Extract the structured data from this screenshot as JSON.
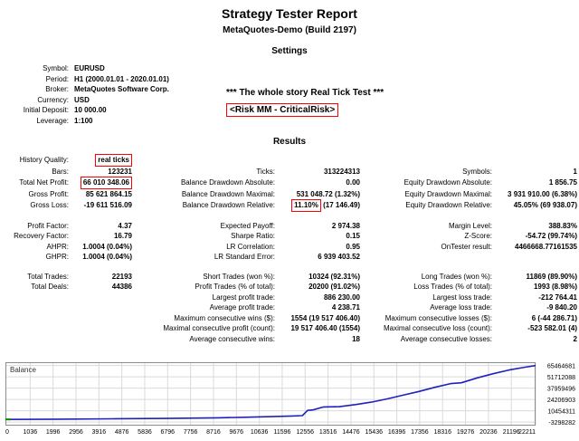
{
  "colors": {
    "annotation_red": "#ff0000"
  },
  "header": {
    "title": "Strategy Tester Report",
    "subtitle": "MetaQuotes-Demo (Build 2197)",
    "settings_heading": "Settings",
    "results_heading": "Results"
  },
  "settings": {
    "rows": [
      {
        "label": "Symbol:",
        "value": "EURUSD"
      },
      {
        "label": "Period:",
        "value": "H1 (2000.01.01 - 2020.01.01)"
      },
      {
        "label": "Broker:",
        "value": "MetaQuotes Software Corp."
      },
      {
        "label": "Currency:",
        "value": "USD"
      },
      {
        "label": "Initial Deposit:",
        "value": "10 000.00"
      },
      {
        "label": "Leverage:",
        "value": "1:100"
      }
    ],
    "annotation_line1": "*** The whole story Real Tick Test ***",
    "annotation_line2": "<Risk MM - CriticalRisk>"
  },
  "results": {
    "rows": [
      [
        "History Quality:",
        {
          "boxed": "real ticks"
        },
        "",
        "",
        "",
        ""
      ],
      [
        "Bars:",
        "123231",
        "Ticks:",
        "313224313",
        "Symbols:",
        "1"
      ],
      [
        "Total Net Profit:",
        {
          "boxed": "66 010 348.06"
        },
        "Balance Drawdown Absolute:",
        "0.00",
        "Equity Drawdown Absolute:",
        "1 856.75"
      ],
      [
        "Gross Profit:",
        "85 621 864.15",
        "Balance Drawdown Maximal:",
        "531 048.72 (1.32%)",
        "Equity Drawdown Maximal:",
        "3 931 910.00 (6.38%)"
      ],
      [
        "Gross Loss:",
        "-19 611 516.09",
        "Balance Drawdown Relative:",
        {
          "boxed": "11.10%",
          "rest": " (17 146.49)"
        },
        "Equity Drawdown Relative:",
        "45.05% (69 938.07)"
      ],
      [],
      [
        "Profit Factor:",
        "4.37",
        "Expected Payoff:",
        "2 974.38",
        "Margin Level:",
        "388.83%"
      ],
      [
        "Recovery Factor:",
        "16.79",
        "Sharpe Ratio:",
        "0.15",
        "Z-Score:",
        "-54.72 (99.74%)"
      ],
      [
        "AHPR:",
        "1.0004 (0.04%)",
        "LR Correlation:",
        "0.95",
        "OnTester result:",
        "4466668.77161535"
      ],
      [
        "GHPR:",
        "1.0004 (0.04%)",
        "LR Standard Error:",
        "6 939 403.52",
        "",
        ""
      ],
      [],
      [
        "Total Trades:",
        "22193",
        "Short Trades (won %):",
        "10324 (92.31%)",
        "Long Trades (won %):",
        "11869 (89.90%)"
      ],
      [
        "Total Deals:",
        "44386",
        "Profit Trades (% of total):",
        "20200 (91.02%)",
        "Loss Trades (% of total):",
        "1993 (8.98%)"
      ],
      [
        "",
        "",
        "Largest profit trade:",
        "886 230.00",
        "Largest loss trade:",
        "-212 764.41"
      ],
      [
        "",
        "",
        "Average profit trade:",
        "4 238.71",
        "Average loss trade:",
        "-9 840.20"
      ],
      [
        "",
        "",
        "Maximum consecutive wins ($):",
        "1554 (19 517 406.40)",
        "Maximum consecutive losses ($):",
        "6 (-44 286.71)"
      ],
      [
        "",
        "",
        "Maximal consecutive profit (count):",
        "19 517 406.40 (1554)",
        "Maximal consecutive loss (count):",
        "-523 582.01 (4)"
      ],
      [
        "",
        "",
        "Average consecutive wins:",
        "18",
        "Average consecutive losses:",
        "2"
      ]
    ]
  },
  "chart_data": {
    "type": "line",
    "title": "Balance",
    "title_color": "#333333",
    "xlabel": "",
    "ylabel": "",
    "xlim": [
      0,
      22211
    ],
    "ylim": [
      -7500000,
      69500000
    ],
    "grid": true,
    "grid_color": "#dadada",
    "border_color": "#8c8c8c",
    "line_color": "#2020c0",
    "deposit_marker_color": "#009000",
    "x_ticks": [
      0,
      1036,
      1996,
      2956,
      3916,
      4876,
      5836,
      6796,
      7756,
      8716,
      9676,
      10636,
      11596,
      12556,
      13516,
      14476,
      15436,
      16396,
      17356,
      18316,
      19276,
      20236,
      21196,
      22211
    ],
    "y_ticks": [
      65464681,
      51712088,
      37959496,
      24206903,
      10454311,
      -3298282
    ],
    "series": [
      {
        "name": "Balance",
        "x": [
          0,
          2221,
          4442,
          6663,
          8884,
          9995,
          11106,
          11994,
          12438,
          12660,
          12882,
          13327,
          13993,
          14659,
          15326,
          15992,
          16658,
          17325,
          17991,
          18657,
          19102,
          19768,
          20434,
          21100,
          21767,
          22211
        ],
        "y": [
          10000,
          300000,
          700000,
          1200000,
          2000000,
          2600000,
          3400000,
          4200000,
          4600000,
          11000000,
          11500000,
          15200000,
          15500000,
          18000000,
          21000000,
          25000000,
          29500000,
          34000000,
          39000000,
          43500000,
          44500000,
          50500000,
          55500000,
          60000000,
          63500000,
          65464681
        ]
      }
    ]
  }
}
